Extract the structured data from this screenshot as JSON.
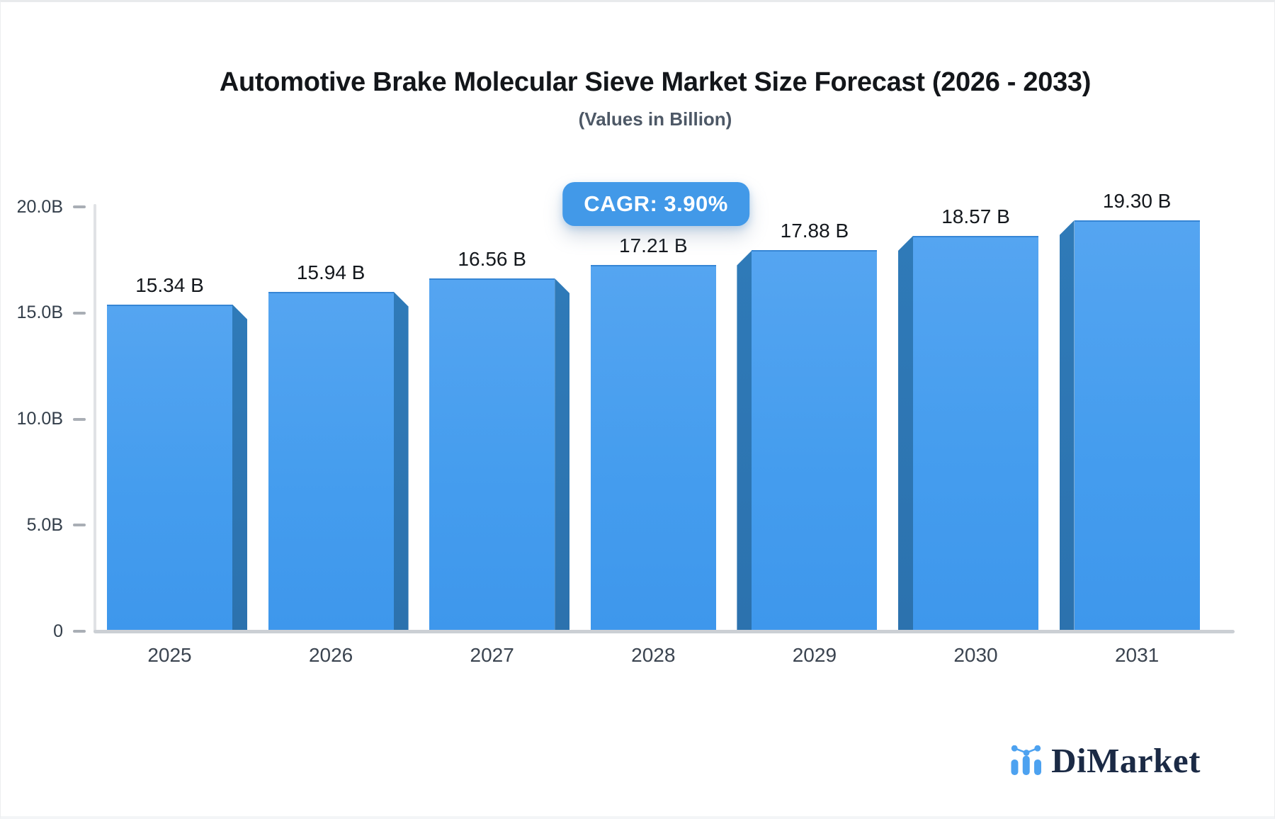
{
  "chart_data": {
    "type": "bar",
    "title": "Automotive Brake Molecular Sieve Market Size Forecast (2026 - 2033)",
    "subtitle": "(Values in Billion)",
    "cagr_label": "CAGR: 3.90%",
    "categories": [
      "2025",
      "2026",
      "2027",
      "2028",
      "2029",
      "2030",
      "2031"
    ],
    "values": [
      15.34,
      15.94,
      16.56,
      17.21,
      17.88,
      18.57,
      19.3
    ],
    "value_labels": [
      "15.34 B",
      "15.94 B",
      "16.56 B",
      "17.21 B",
      "17.88 B",
      "18.57 B",
      "19.30 B"
    ],
    "unit": "Billion",
    "ylim": [
      0,
      20
    ],
    "yticks": {
      "values": [
        0,
        5,
        10,
        15,
        20
      ],
      "labels": [
        "0",
        "5.0B",
        "10.0B",
        "15.0B",
        "20.0B"
      ]
    },
    "xlabel": "",
    "ylabel": "",
    "legend": "none",
    "grid": "off",
    "bar_style": "3d-extruded",
    "colors": {
      "bar_face_top": "#55A5F1",
      "bar_face_bottom": "#3E97EC",
      "bar_side": "#2E76B4",
      "badge_bg": "#4299E8",
      "badge_text": "#FFFFFF",
      "axis_line": "#CBCFD4",
      "tick_text": "#333E4A"
    }
  },
  "brand": {
    "name": "DiMarket",
    "logo_icon": "mini-bar-line-chart-icon",
    "navy": "#1B2A45",
    "blue": "#4DA2F0"
  }
}
